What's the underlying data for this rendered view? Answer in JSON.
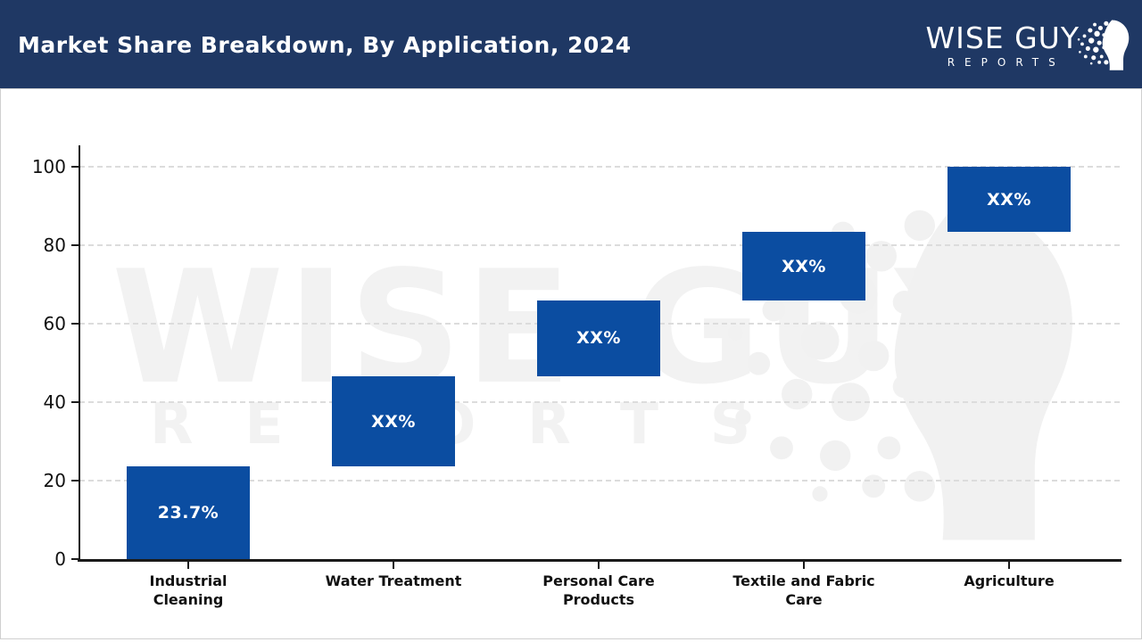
{
  "header": {
    "title": "Market Share Breakdown, By Application, 2024",
    "logo": {
      "line1": "WISE GUY",
      "line2": "REPORTS",
      "icon": "face-profile-made-of-dots"
    }
  },
  "watermark": {
    "line1": "WISE GUY",
    "line2": "REPORTS",
    "icon": "face-profile-made-of-dots"
  },
  "colors": {
    "header_bg": "#1f3864",
    "bar": "#0b4da1",
    "bar_label": "#ffffff",
    "grid": "#dcdcdc",
    "axis": "#1a1a1a",
    "watermark": "#f2f2f2",
    "panel_border": "#cfcfcf"
  },
  "chart_data": {
    "type": "bar",
    "subtype": "waterfall",
    "title": "Market Share Breakdown, By Application, 2024",
    "xlabel": "",
    "ylabel": "",
    "categories": [
      "Industrial Cleaning",
      "Water Treatment",
      "Personal Care Products",
      "Textile and Fabric Care",
      "Agriculture"
    ],
    "values": [
      23.7,
      22.8,
      19.5,
      17.3,
      16.7
    ],
    "segments": [
      {
        "category": "Industrial Cleaning",
        "lines": [
          "Industrial",
          "Cleaning"
        ],
        "start": 0,
        "end": 23.7,
        "label": "23.7%"
      },
      {
        "category": "Water Treatment",
        "lines": [
          "Water Treatment"
        ],
        "start": 23.7,
        "end": 46.5,
        "label": "XX%"
      },
      {
        "category": "Personal Care Products",
        "lines": [
          "Personal Care",
          "Products"
        ],
        "start": 46.5,
        "end": 66.0,
        "label": "XX%"
      },
      {
        "category": "Textile and Fabric Care",
        "lines": [
          "Textile and Fabric",
          "Care"
        ],
        "start": 66.0,
        "end": 83.3,
        "label": "XX%"
      },
      {
        "category": "Agriculture",
        "lines": [
          "Agriculture"
        ],
        "start": 83.3,
        "end": 100.0,
        "label": "XX%"
      }
    ],
    "yticks": [
      0,
      20,
      40,
      60,
      80,
      100
    ],
    "ylim": [
      0,
      105
    ],
    "grid": "horizontal-dashed",
    "legend": "none",
    "bar_color": "#0b4da1",
    "label_color": "#ffffff"
  }
}
